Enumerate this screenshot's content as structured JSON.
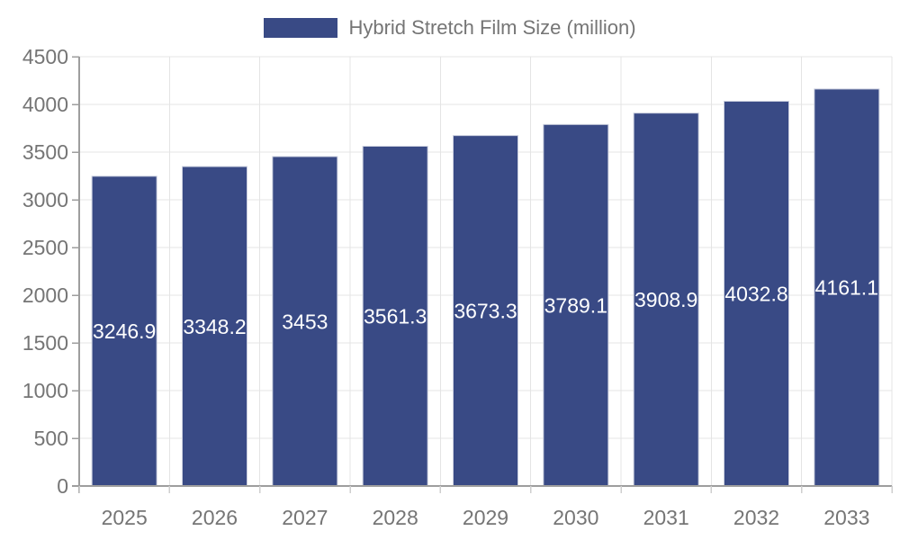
{
  "legend": {
    "label": "Hybrid Stretch Film Size (million)"
  },
  "colors": {
    "bar": "#394A85",
    "bar_edge": "#C9CEDE",
    "grid": "#E4E4E4",
    "axis": "#9E9E9E",
    "minor_tick": "#CFCFCF",
    "tick_label": "#757575",
    "value_label": "#FFFFFF",
    "background": "#FFFFFF"
  },
  "chart_data": {
    "type": "bar",
    "title": "Hybrid Stretch Film Size (million)",
    "categories": [
      "2025",
      "2026",
      "2027",
      "2028",
      "2029",
      "2030",
      "2031",
      "2032",
      "2033"
    ],
    "values": [
      3246.9,
      3348.2,
      3453,
      3561.3,
      3673.3,
      3789.1,
      3908.9,
      4032.8,
      4161.1
    ],
    "value_labels": [
      "3246.9",
      "3348.2",
      "3453",
      "3561.3",
      "3673.3",
      "3789.1",
      "3908.9",
      "4032.8",
      "4161.1"
    ],
    "xlabel": "",
    "ylabel": "",
    "ylim": [
      0,
      4500
    ],
    "yticks": [
      0,
      500,
      1000,
      1500,
      2000,
      2500,
      3000,
      3500,
      4000,
      4500
    ],
    "grid": true,
    "legend_position": "top-center",
    "value_label_position": "inside-center"
  }
}
